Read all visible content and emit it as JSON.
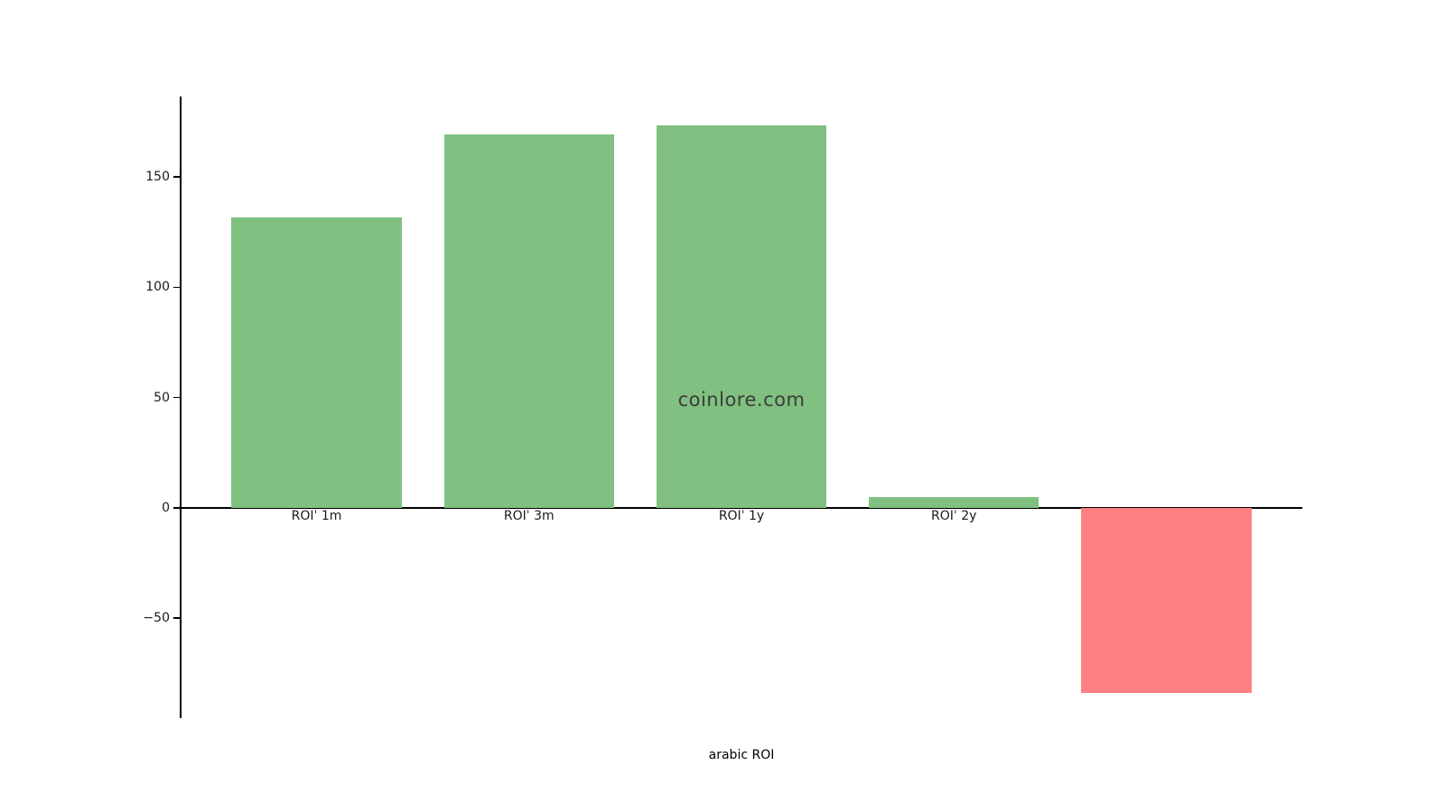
{
  "watermark": {
    "text": "coinlore.com",
    "color": "#3c3c3c"
  },
  "chart_data": {
    "type": "bar",
    "title": "",
    "xlabel": "arabic ROI",
    "ylabel": "",
    "categories": [
      "ROIˈ 1m",
      "ROIˈ 3m",
      "ROIˈ 1y",
      "ROIˈ 2y",
      ""
    ],
    "values": [
      131.7,
      169.5,
      173.3,
      4.9,
      -83.9
    ],
    "bar_colors": [
      "#80c080",
      "#80c080",
      "#80c080",
      "#80c080",
      "#ff8080"
    ],
    "positive_color": "#80c080",
    "negative_color": "#ff8080",
    "bar_width": 0.8,
    "yticks": [
      150,
      100,
      50,
      0,
      -50
    ],
    "ytick_labels": [
      "150",
      "100",
      "50",
      "0",
      "−50"
    ],
    "ylim": [
      -95.3,
      186.5
    ],
    "xlim": [
      -0.64,
      4.64
    ],
    "grid": false,
    "legend": false,
    "axis_color": "#000000",
    "tick_text_color": "#1a1a1a"
  }
}
